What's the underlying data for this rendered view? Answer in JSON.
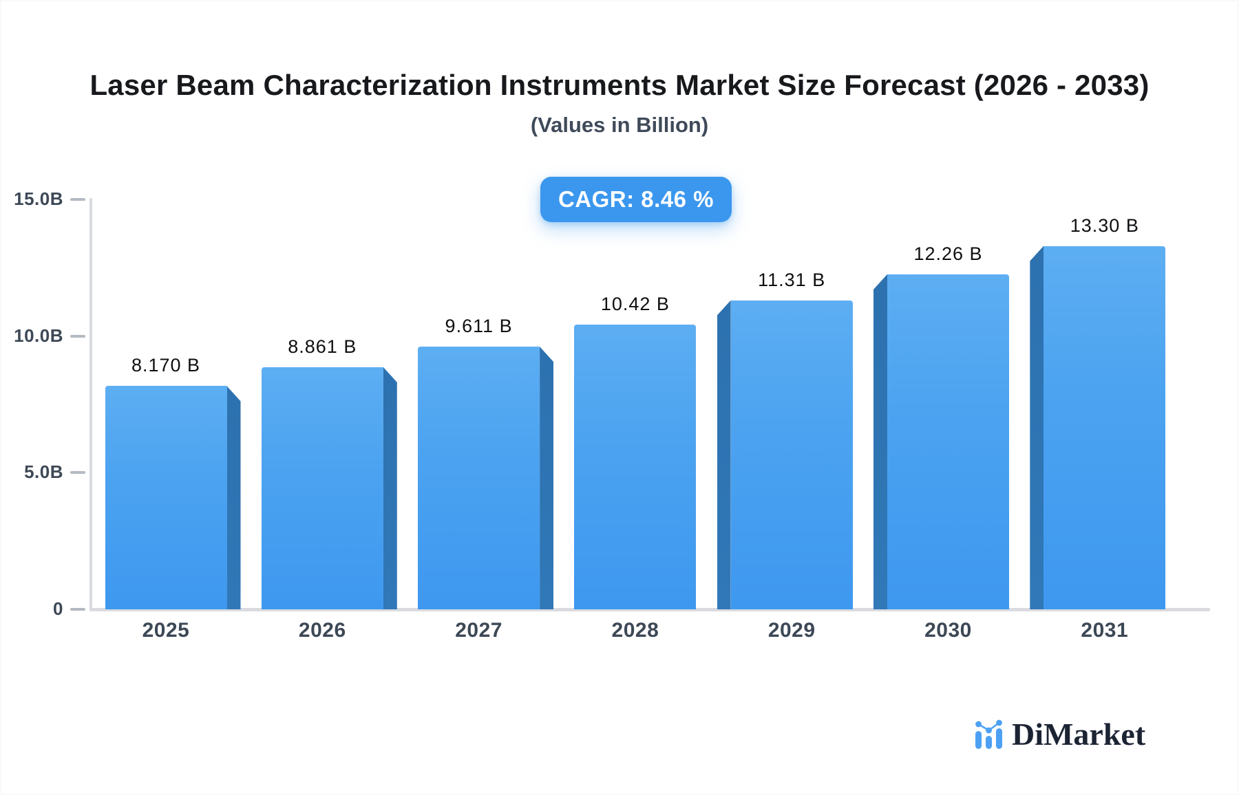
{
  "header": {
    "title": "Laser Beam Characterization Instruments Market Size Forecast (2026 - 2033)",
    "subtitle": "(Values in Billion)"
  },
  "cagr_badge": {
    "label": "CAGR: 8.46 %",
    "color": "#3b97ee"
  },
  "chart_data": {
    "type": "bar",
    "title": "Laser Beam Characterization Instruments Market Size Forecast (2026 - 2033)",
    "subtitle": "(Values in Billion)",
    "categories": [
      "2025",
      "2026",
      "2027",
      "2028",
      "2029",
      "2030",
      "2031"
    ],
    "values": [
      8.17,
      8.861,
      9.611,
      10.42,
      11.31,
      12.26,
      13.3
    ],
    "value_labels": [
      "8.170 B",
      "8.861 B",
      "9.611 B",
      "10.42 B",
      "11.31 B",
      "12.26 B",
      "13.30 B"
    ],
    "xlabel": "",
    "ylabel": "",
    "ylim": [
      0,
      15
    ],
    "yticks": [
      {
        "value": 15,
        "label": "15.0B"
      },
      {
        "value": 10,
        "label": "10.0B"
      },
      {
        "value": 5,
        "label": "5.0B"
      },
      {
        "value": 0,
        "label": "0"
      }
    ],
    "grid": false,
    "legend": false,
    "bar_style": {
      "face_top_color": "#5daef2",
      "face_bottom_color": "#3e98ef",
      "side_color": "#2e74b3",
      "perspective": "sides face outward from center; center bar flat"
    },
    "axis_color": "#d9dbe0",
    "tick_color": "#b4bac2"
  },
  "branding": {
    "name": "DiMarket",
    "icon": "bar-line-chart-icon",
    "icon_color": "#4da1f4",
    "text_color": "#1c2434"
  }
}
